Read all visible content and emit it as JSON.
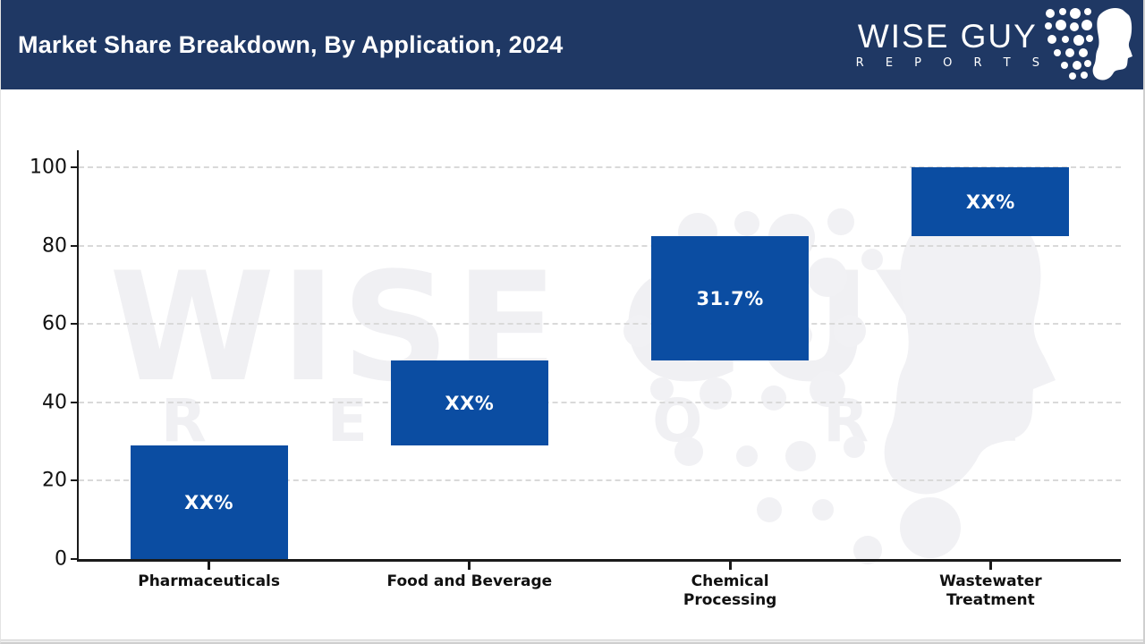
{
  "header": {
    "title": "Market Share Breakdown, By Application, 2024",
    "logo": {
      "line1": "WISE GUY",
      "line2": "R E P O R T S"
    }
  },
  "watermark": {
    "line1": "WISE GUY",
    "line2": "R E P O R T S"
  },
  "colors": {
    "header_bg": "#1F3864",
    "bar": "#0B4DA2",
    "grid": "#D9D9D9",
    "watermark": "#F0F0F3",
    "axis": "#1A1A1A",
    "bar_label_text": "#FFFFFF"
  },
  "chart_data": {
    "type": "bar",
    "subtype": "waterfall-floating-bars",
    "title": "Market Share Breakdown, By Application, 2024",
    "categories": [
      "Pharmaceuticals",
      "Food and Beverage",
      "Chemical Processing",
      "Wastewater Treatment"
    ],
    "segments": [
      {
        "category": "Pharmaceuticals",
        "category_lines": [
          "Pharmaceuticals"
        ],
        "start": 0,
        "end": 28.9,
        "value": 28.9,
        "value_label": "XX%"
      },
      {
        "category": "Food and Beverage",
        "category_lines": [
          "Food and Beverage"
        ],
        "start": 28.9,
        "end": 50.7,
        "value": 21.8,
        "value_label": "XX%"
      },
      {
        "category": "Chemical Processing",
        "category_lines": [
          "Chemical",
          "Processing"
        ],
        "start": 50.7,
        "end": 82.4,
        "value": 31.7,
        "value_label": "31.7%"
      },
      {
        "category": "Wastewater Treatment",
        "category_lines": [
          "Wastewater",
          "Treatment"
        ],
        "start": 82.4,
        "end": 100,
        "value": 17.6,
        "value_label": "XX%"
      }
    ],
    "xlabel": "",
    "ylabel": "",
    "ylim": [
      0,
      100
    ],
    "yticks": [
      0,
      20,
      40,
      60,
      80,
      100
    ],
    "grid": "horizontal dashed, at y ticks 20-100",
    "legend": "none"
  }
}
